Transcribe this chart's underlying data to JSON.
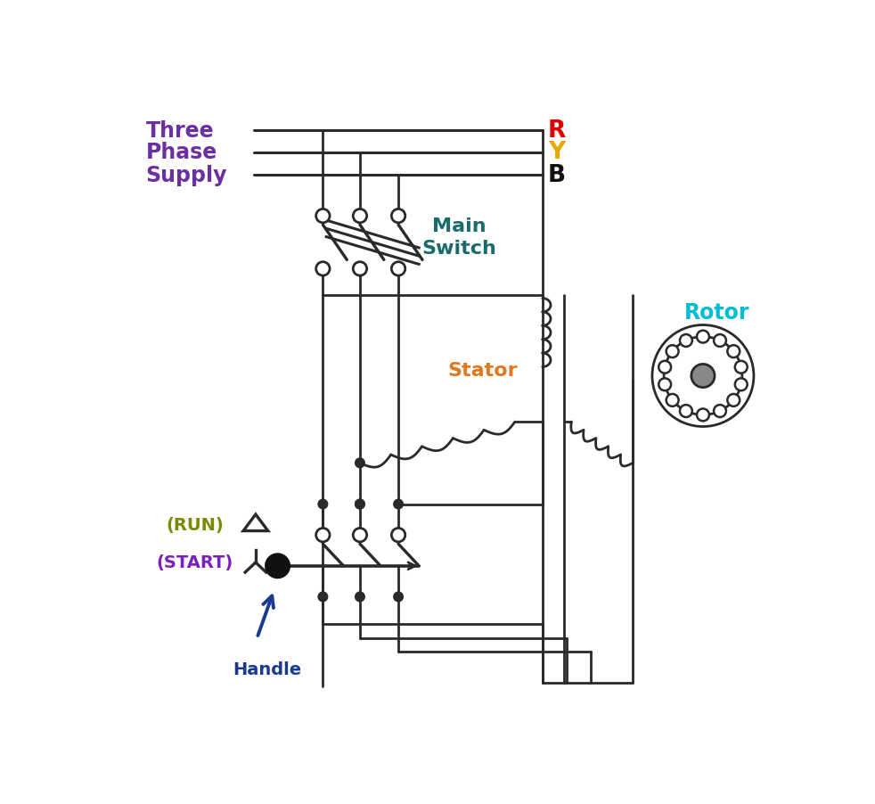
{
  "bg_color": "#ffffff",
  "line_color": "#2a2a2a",
  "lw": 2.0,
  "colors": {
    "R": "#dd0000",
    "Y": "#e6a800",
    "B": "#111111",
    "three_phase": "#6b2fa0",
    "main_switch": "#1a6b6b",
    "stator": "#e07820",
    "rotor": "#00bcd4",
    "run": "#7b8b00",
    "start": "#7b20c0",
    "handle_arrow": "#1a3a8f",
    "handle_text": "#1a3a8f"
  },
  "labels": {
    "three_phase": [
      "Three",
      "Phase",
      "Supply"
    ],
    "R": "R",
    "Y": "Y",
    "B": "B",
    "main_switch": "Main\nSwitch",
    "stator": "Stator",
    "rotor": "Rotor",
    "run": "(RUN)",
    "start": "(START)",
    "handle": "Handle"
  }
}
